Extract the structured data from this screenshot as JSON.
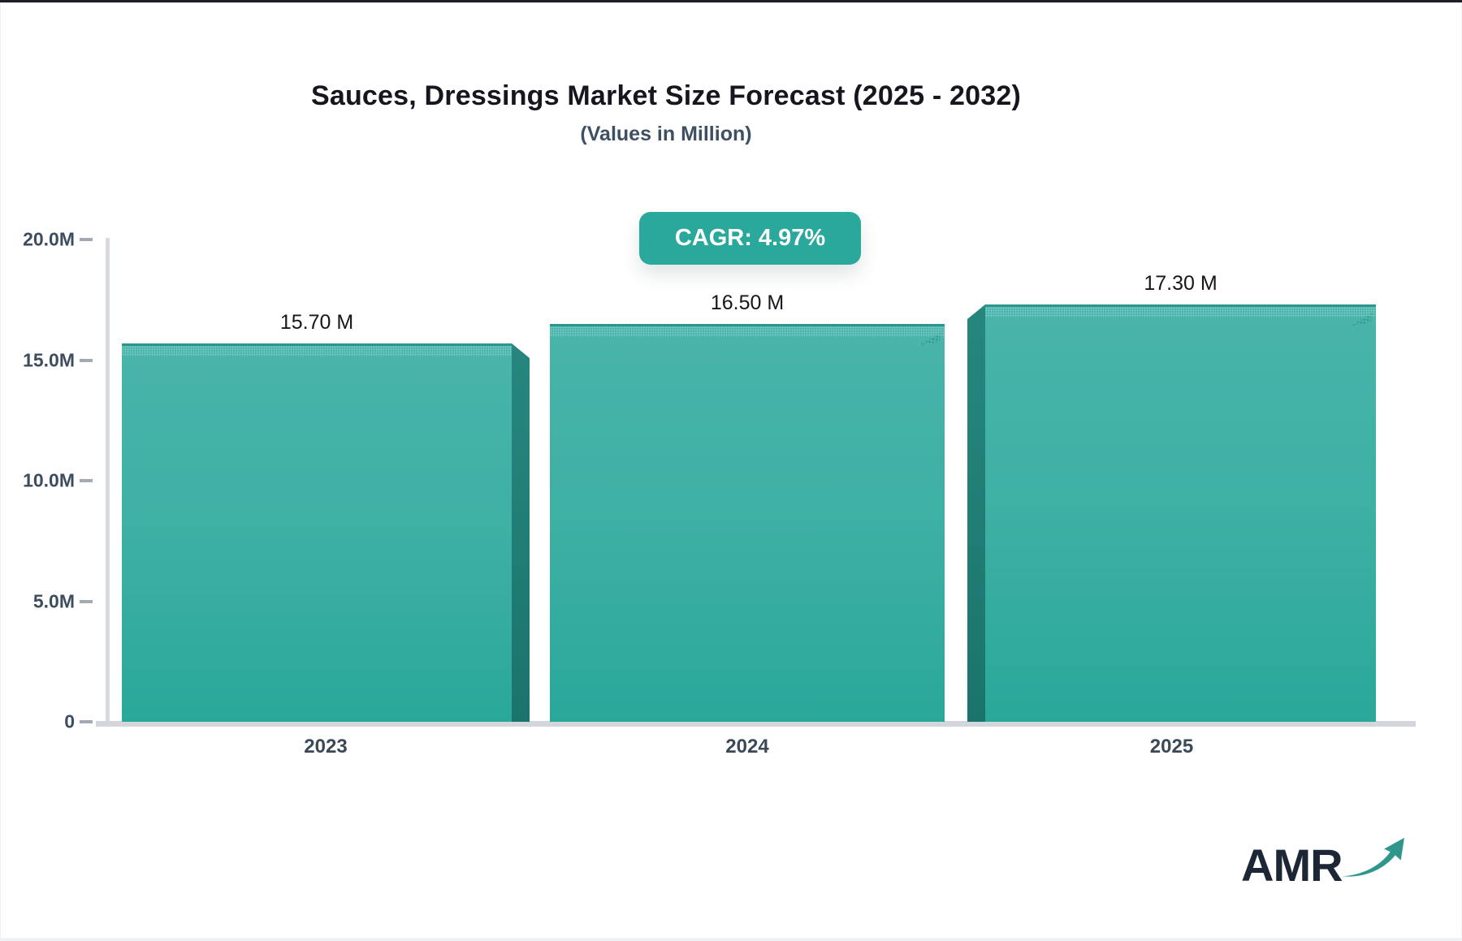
{
  "header": {
    "title": "Sauces, Dressings Market Size Forecast (2025 - 2032)",
    "subtitle": "(Values in Million)"
  },
  "cagr_badge": {
    "label": "CAGR: 4.97%",
    "bg_color": "#2aa89c",
    "text_color": "#ffffff"
  },
  "chart_data": {
    "type": "bar",
    "title": "Sauces, Dressings Market Size Forecast (2025 - 2032)",
    "subtitle": "(Values in Million)",
    "annotation": "CAGR: 4.97%",
    "categories": [
      "2023",
      "2024",
      "2025"
    ],
    "values": [
      15.7,
      16.5,
      17.3
    ],
    "value_labels": [
      "15.70 M",
      "16.50 M",
      "17.30 M"
    ],
    "xlabel": "",
    "ylabel": "",
    "ylim": [
      0,
      20
    ],
    "yticks": [
      {
        "value": 0,
        "label": "0"
      },
      {
        "value": 5,
        "label": "5.0M"
      },
      {
        "value": 10,
        "label": "10.0M"
      },
      {
        "value": 15,
        "label": "15.0M"
      },
      {
        "value": 20,
        "label": "20.0M"
      }
    ],
    "grid": false,
    "legend": false,
    "bar_color_top": "#49b4aa",
    "bar_color_bottom": "#29a89a",
    "bar_side_color": "#1f7d74",
    "axis_color": "#d3d7db"
  },
  "logo": {
    "text": "AMR",
    "text_color": "#1c2634",
    "arrow_color": "#2f968c"
  }
}
